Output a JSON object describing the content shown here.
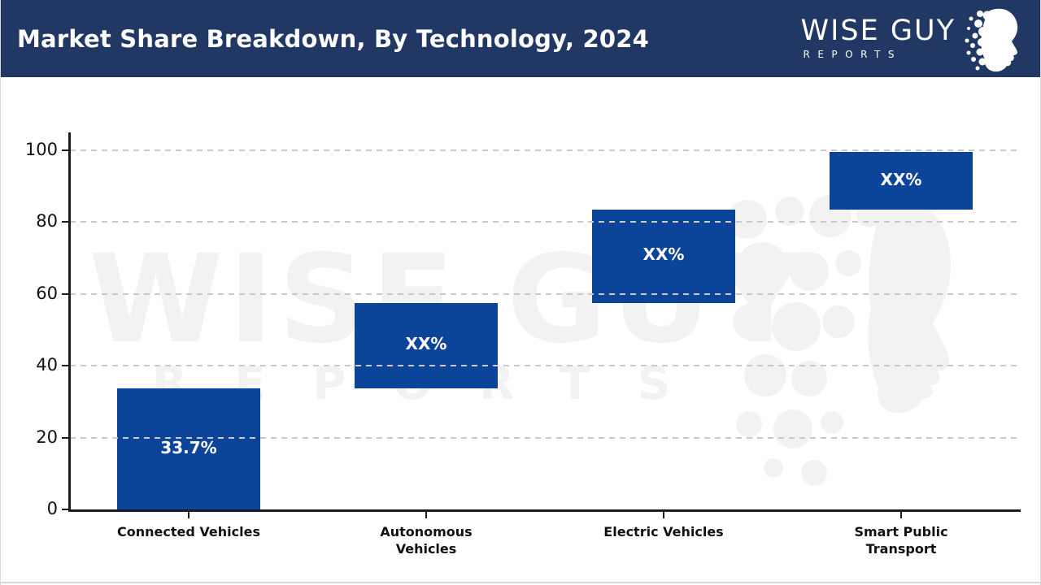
{
  "header": {
    "title": "Market Share Breakdown, By Technology, 2024",
    "bg_color": "#213864",
    "logo": {
      "name": "WISE GUY",
      "sub": "REPORTS"
    }
  },
  "watermark": {
    "main": "WISE GUY",
    "sub": "REPORTS"
  },
  "chart_data": {
    "type": "bar",
    "variant": "waterfall",
    "title": "Market Share Breakdown, By Technology, 2024",
    "xlabel": "",
    "ylabel": "",
    "ylim": [
      0,
      105
    ],
    "y_ticks": [
      0,
      20,
      40,
      60,
      80,
      100
    ],
    "grid": "horizontal-dashed",
    "legend_position": "none",
    "bar_color": "#0c4499",
    "categories": [
      "Connected Vehicles",
      "Autonomous\nVehicles",
      "Electric Vehicles",
      "Smart Public\nTransport"
    ],
    "segments": [
      {
        "category": "Connected Vehicles",
        "start": 0,
        "end": 33.7,
        "label": "33.7%"
      },
      {
        "category": "Autonomous Vehicles",
        "start": 33.7,
        "end": 57.5,
        "label": "XX%"
      },
      {
        "category": "Electric Vehicles",
        "start": 57.5,
        "end": 83.5,
        "label": "XX%"
      },
      {
        "category": "Smart Public Transport",
        "start": 83.5,
        "end": 99.5,
        "label": "XX%"
      }
    ]
  },
  "colors": {
    "header_bg": "#213864",
    "bar_blue": "#0c4499",
    "gridline": "#c9c9c9",
    "axis": "#1c1c1c",
    "watermark": "#f2f2f2",
    "edge_border": "#d9d9d9"
  }
}
